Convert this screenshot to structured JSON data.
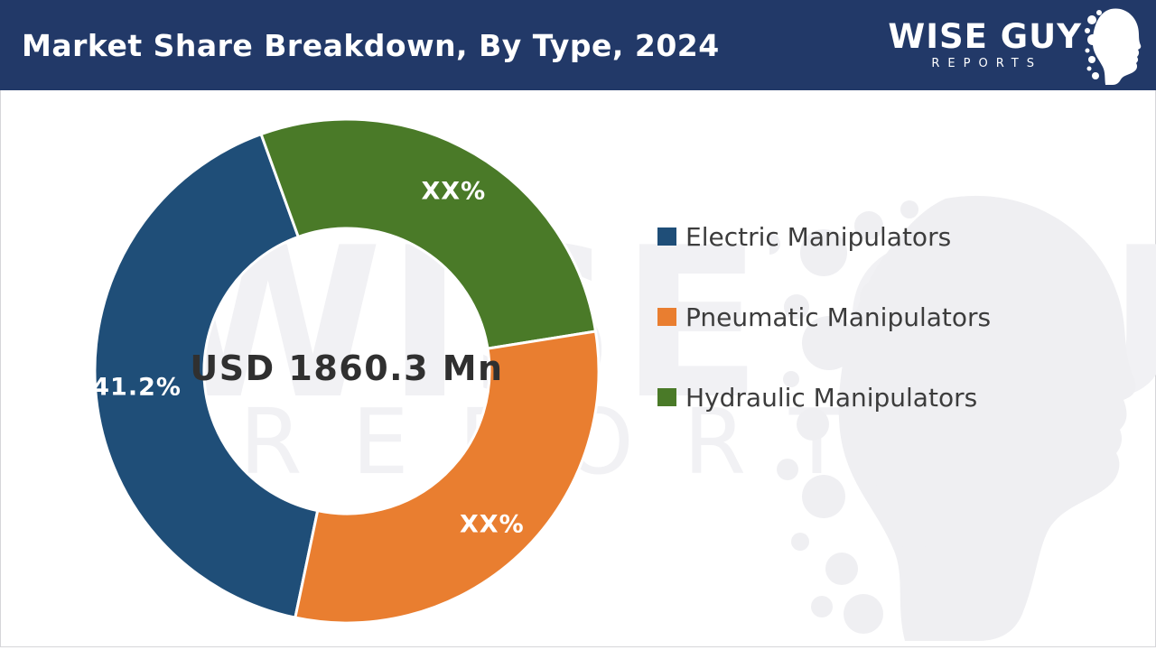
{
  "header": {
    "title": "Market Share Breakdown, By Type, 2024",
    "logo": {
      "line1": "WISE GUY",
      "line2": "REPORTS"
    }
  },
  "watermark": {
    "line1": "WISE GUY",
    "line2": "REPORTS"
  },
  "chart_data": {
    "type": "pie",
    "donut": true,
    "title": "Market Share Breakdown, By Type, 2024",
    "center_label": "USD 1860.3 Mn",
    "legend_position": "right",
    "start_angle_deg": 191.8,
    "draw_order": [
      0,
      2,
      1
    ],
    "segments": [
      {
        "name": "Electric Manipulators",
        "value": 41.2,
        "display_label": "41.2%",
        "color": "#1F4E78"
      },
      {
        "name": "Pneumatic Manipulators",
        "value": 30.8,
        "display_label": "XX%",
        "color": "#E97E30"
      },
      {
        "name": "Hydraulic Manipulators",
        "value": 28.0,
        "display_label": "XX%",
        "color": "#4A7A28"
      }
    ]
  },
  "colors": {
    "header_bg": "#223968",
    "watermark": "#F1F1F4",
    "center_text": "#303030",
    "legend_text": "#3C3C3C"
  }
}
